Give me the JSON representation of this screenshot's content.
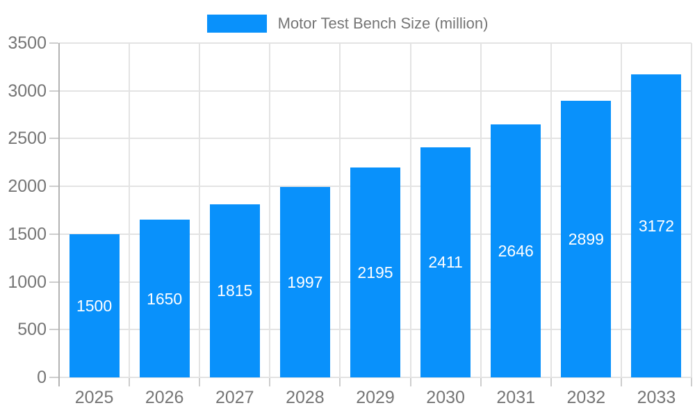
{
  "chart_data": {
    "type": "bar",
    "title": "Motor Test Bench Size (million)",
    "categories": [
      "2025",
      "2026",
      "2027",
      "2028",
      "2029",
      "2030",
      "2031",
      "2032",
      "2033"
    ],
    "series": [
      {
        "name": "Motor Test Bench Size (million)",
        "values": [
          1500,
          1650,
          1815,
          1997,
          2195,
          2411,
          2646,
          2899,
          3172
        ]
      }
    ],
    "xlabel": "",
    "ylabel": "",
    "ylim": [
      0,
      3500
    ],
    "yticks": [
      0,
      500,
      1000,
      1500,
      2000,
      2500,
      3000,
      3500
    ],
    "grid": true,
    "legend_position": "top-center",
    "bar_value_labels": "inside-middle",
    "colors": {
      "bar": "#0991fb",
      "bar_label": "#ffffff",
      "axis_text": "#757575",
      "legend_text": "#757575",
      "gridline": "#e3e3e3",
      "tick": "#cdcdcd",
      "axis_line": "#b3b3b3",
      "background": "#ffffff"
    }
  }
}
